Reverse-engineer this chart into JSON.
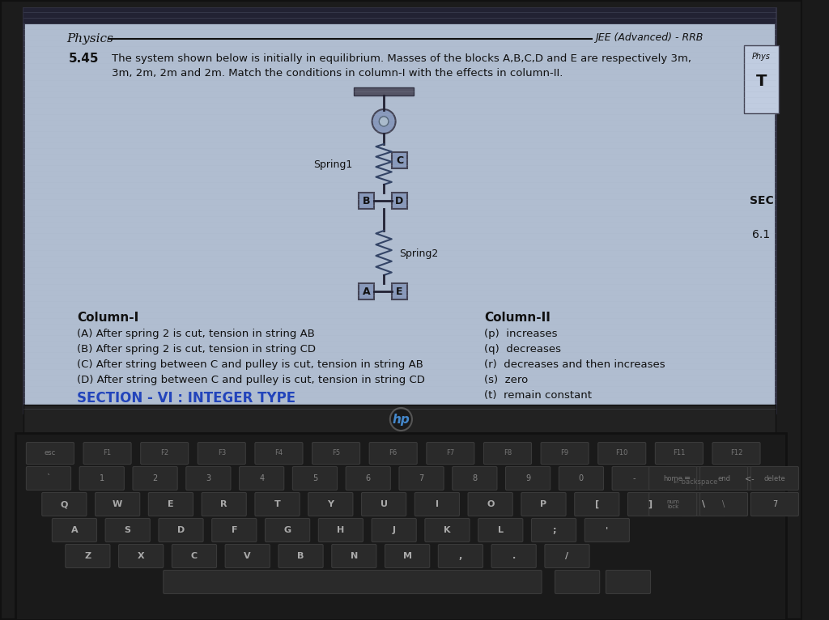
{
  "bg_color": "#b8c4d8",
  "screen_bg": "#b0bdd0",
  "laptop_bg": "#1a1a1a",
  "title_header": "Physics",
  "jee_header": "JEE (Advanced) - RRB",
  "problem_number": "5.45",
  "problem_line1": "The system shown below is initially in equilibrium. Masses of the blocks A,B,C,D and E are respectively 3m,",
  "problem_line2": "3m, 2m, 2m and 2m. Match the conditions in column-I with the effects in column-II.",
  "spring1_label": "Spring1",
  "spring2_label": "Spring2",
  "column1_title": "Column-I",
  "column1_items": [
    "(A) After spring 2 is cut, tension in string AB",
    "(B) After spring 2 is cut, tension in string CD",
    "(C) After string between C and pulley is cut, tension in string AB",
    "(D) After string between C and pulley is cut, tension in string CD"
  ],
  "column2_title": "Column-II",
  "column2_items": [
    "(p)  increases",
    "(q)  decreases",
    "(r)  decreases and then increases",
    "(s)  zero",
    "(t)  remain constant"
  ],
  "section_text": "SECTION - VI : INTEGER TYPE",
  "sec_label": "SEC",
  "num_label": "6.1",
  "phys_label": "Phys",
  "text_color": "#111111",
  "block_color": "#8899bb",
  "spring_color": "#334466",
  "pulley_color": "#7788aa"
}
